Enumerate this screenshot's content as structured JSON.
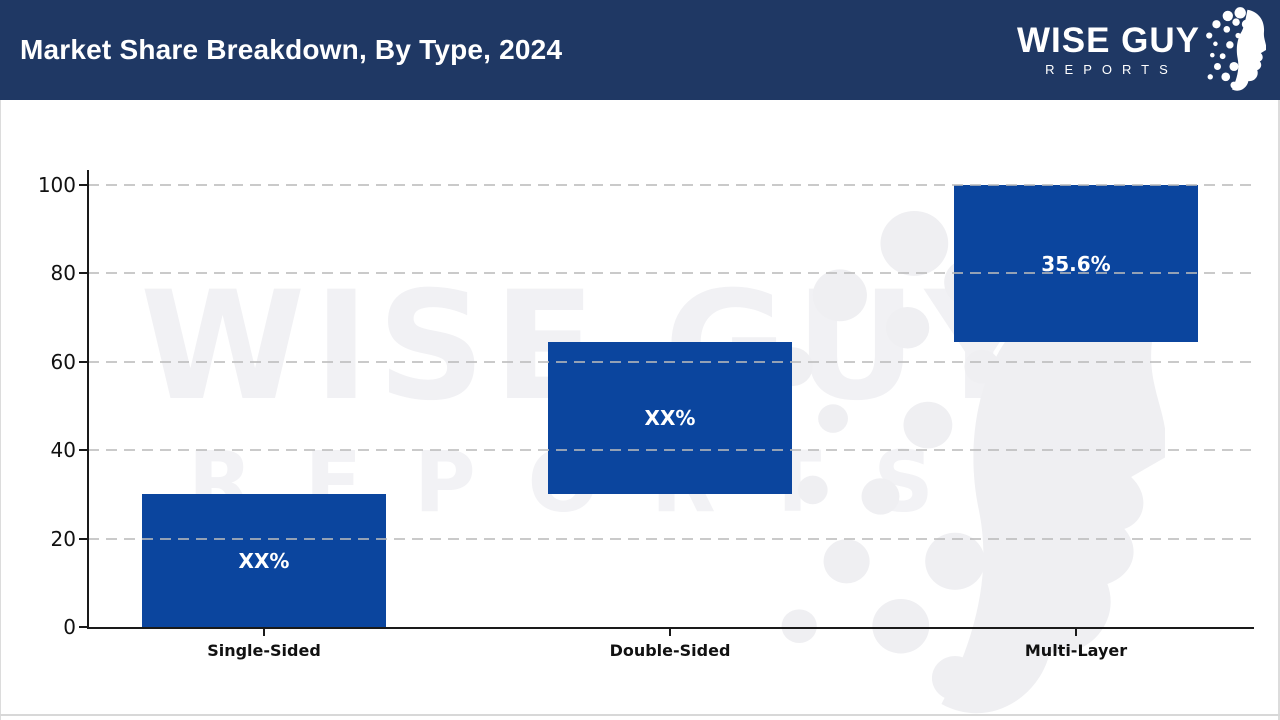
{
  "header": {
    "title": "Market Share Breakdown, By Type, 2024",
    "logo": {
      "brand_top": "WISE GUY",
      "brand_bottom": "REPORTS"
    }
  },
  "watermark": {
    "line1": "WISE GUY",
    "line2": "REPORTS"
  },
  "chart_data": {
    "type": "bar",
    "variant": "floating-waterfall",
    "title": "Market Share Breakdown, By Type, 2024",
    "categories": [
      "Single-Sided",
      "Double-Sided",
      "Multi-Layer"
    ],
    "segments": [
      {
        "category": "Single-Sided",
        "start": 0,
        "end": 30,
        "share_pct": 30,
        "label": "XX%"
      },
      {
        "category": "Double-Sided",
        "start": 30,
        "end": 64.4,
        "share_pct": 34.4,
        "label": "XX%"
      },
      {
        "category": "Multi-Layer",
        "start": 64.4,
        "end": 100,
        "share_pct": 35.6,
        "label": "35.6%"
      }
    ],
    "ylim": [
      0,
      100
    ],
    "yticks": [
      0,
      20,
      40,
      60,
      80,
      100
    ],
    "xlabel": "",
    "ylabel": "",
    "grid": "horizontal-dashed",
    "legend": "none",
    "bar_color": "#0b459e",
    "bar_label_color": "#ffffff"
  },
  "colors": {
    "header_bg": "#1f3864",
    "bar": "#0b459e",
    "axis": "#1a1a1a",
    "gridline": "#c3c3c3",
    "watermark": "#f1f1f4",
    "title_text": "#ffffff",
    "tick_text": "#111111"
  }
}
